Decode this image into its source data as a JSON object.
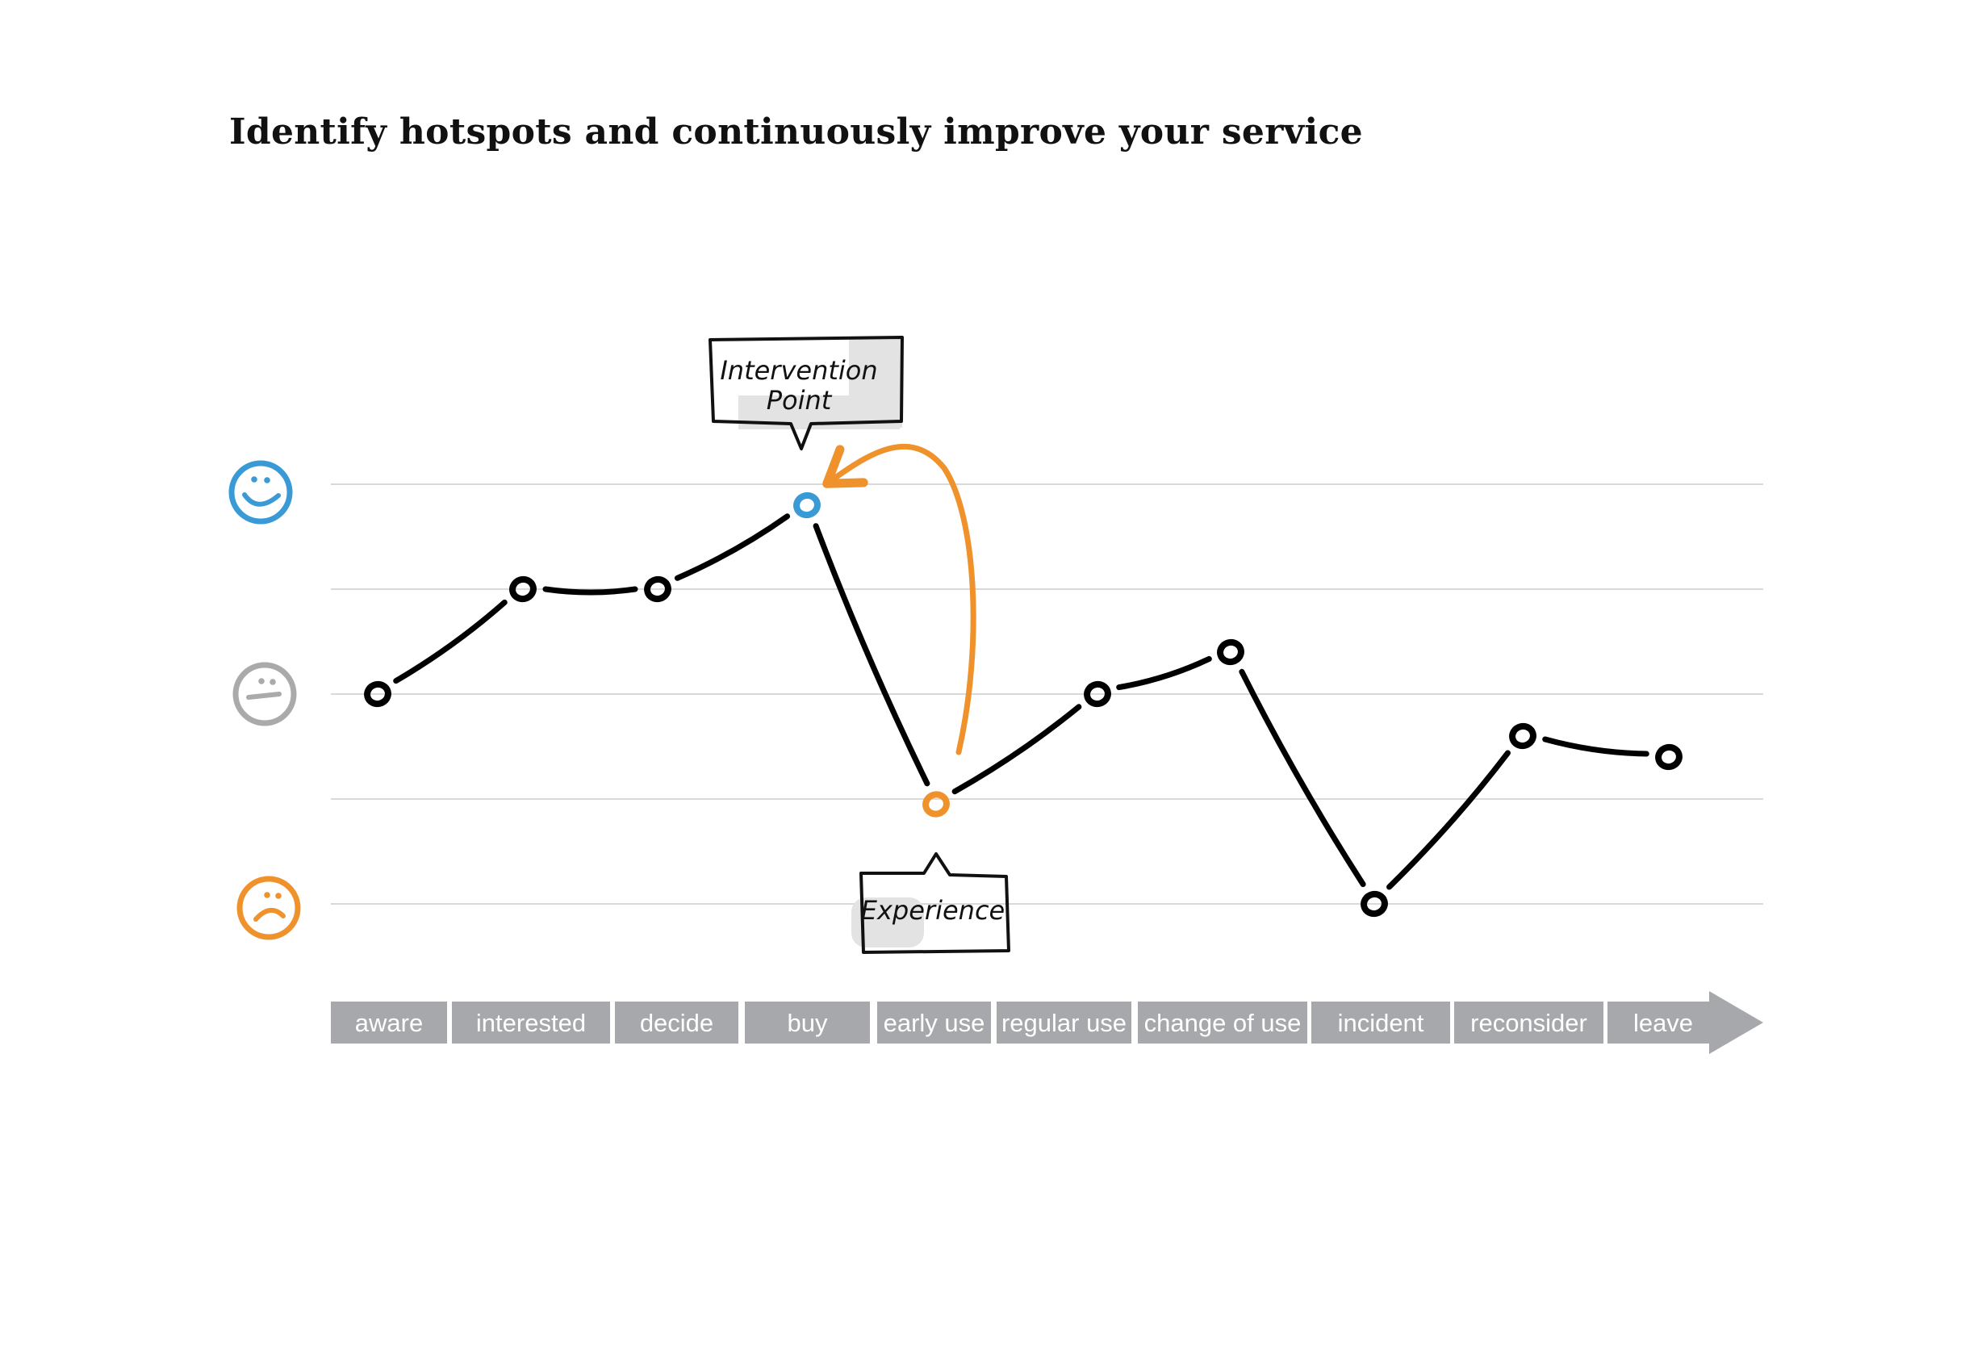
{
  "title": "Identify hotspots and continuously improve your service",
  "emotion_levels": [
    {
      "name": "happy",
      "icon": "smiley-happy-icon",
      "color": "#3a9ad6"
    },
    {
      "name": "neutral",
      "icon": "smiley-neutral-icon",
      "color": "#aaaaaa"
    },
    {
      "name": "unhappy",
      "icon": "smiley-sad-icon",
      "color": "#f0922c"
    }
  ],
  "colors": {
    "happy": "#3a9ad6",
    "neutral": "#aaaaaa",
    "unhappy": "#f0922c",
    "line": "#000000",
    "stage_bar": "#a7a8ab",
    "gridline": "#d9d9d9"
  },
  "chart_data": {
    "type": "line",
    "title": "Identify hotspots and continuously improve your service",
    "xlabel": "",
    "ylabel": "",
    "ylim": [
      -2,
      2
    ],
    "y_scale_labels": [
      "happy",
      "neutral",
      "unhappy"
    ],
    "stages": [
      "aware",
      "interested",
      "decide",
      "buy",
      "early use",
      "regular use",
      "change of use",
      "incident",
      "reconsider",
      "leave"
    ],
    "points": [
      {
        "stage": "aware",
        "value": 0
      },
      {
        "stage": "interested",
        "value": 1
      },
      {
        "stage": "decide",
        "value": 1
      },
      {
        "stage": "buy",
        "value": 1.8,
        "highlight": "happy"
      },
      {
        "stage": "early use",
        "value": -1.05,
        "highlight": "unhappy"
      },
      {
        "stage": "regular use",
        "value": 0
      },
      {
        "stage": "change of use",
        "value": 0.4
      },
      {
        "stage": "incident",
        "value": -2
      },
      {
        "stage": "reconsider",
        "value": -0.4
      },
      {
        "stage": "leave",
        "value": -0.6
      }
    ],
    "annotations": [
      {
        "text": "Intervention Point",
        "attached_to": "buy"
      },
      {
        "text": "Experience",
        "attached_to": "early use"
      }
    ],
    "arrow": {
      "from": "early use",
      "to": "buy",
      "color": "#f0922c"
    }
  },
  "callouts": {
    "intervention_line1": "Intervention",
    "intervention_line2": "Point",
    "experience": "Experience"
  }
}
